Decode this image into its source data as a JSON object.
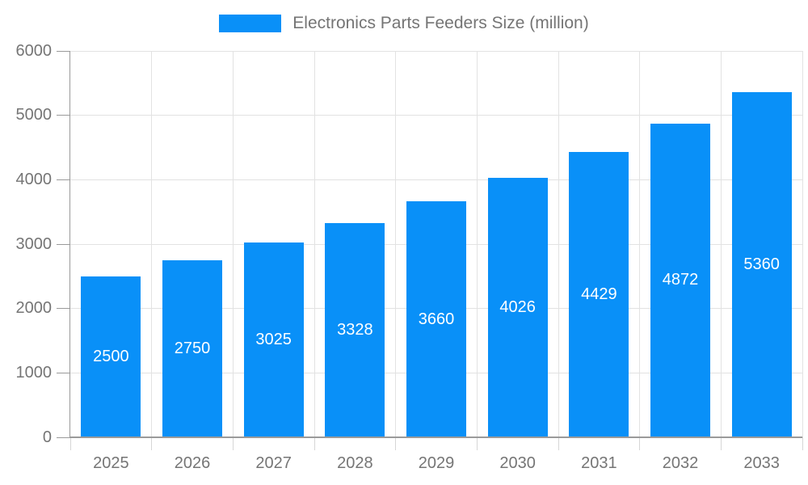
{
  "chart_data": {
    "type": "bar",
    "title": "Electronics Parts Feeders Size (million)",
    "legend_position": "top",
    "categories": [
      "2025",
      "2026",
      "2027",
      "2028",
      "2029",
      "2030",
      "2031",
      "2032",
      "2033"
    ],
    "values": [
      2500,
      2750,
      3025,
      3328,
      3660,
      4026,
      4429,
      4872,
      5360
    ],
    "xlabel": "",
    "ylabel": "",
    "ylim": [
      0,
      6000
    ],
    "y_ticks": [
      0,
      1000,
      2000,
      3000,
      4000,
      5000,
      6000
    ],
    "grid": true,
    "colors": {
      "bar": "#0990f8",
      "bar_value_label": "#ffffff",
      "axis_text": "#757575",
      "gridline": "#e2e2e2",
      "axis_line": "#9a9a9a",
      "boundary_tick": "#d6d6d6"
    }
  }
}
